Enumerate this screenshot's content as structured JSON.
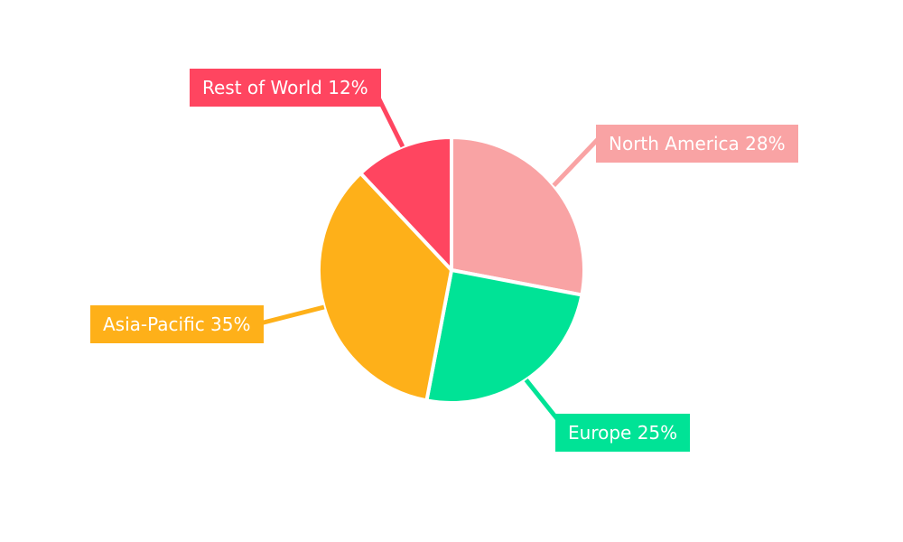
{
  "chart_data": {
    "type": "pie",
    "title": "",
    "categories": [
      "North America",
      "Europe",
      "Asia-Pacific",
      "Rest of World"
    ],
    "values": [
      28,
      25,
      35,
      12
    ],
    "unit": "%",
    "start_angle_deg": 0,
    "direction": "clockwise",
    "legend_position": "none (direct callout labels with leader lines)",
    "background_color": "#ffffff",
    "label_text_color": "#ffffff",
    "slice_gap_color": "#ffffff",
    "slices": [
      {
        "label": "North America",
        "value": 28,
        "display": "North America 28%",
        "color": "#f9a3a4"
      },
      {
        "label": "Europe",
        "value": 25,
        "display": "Europe 25%",
        "color": "#00e396"
      },
      {
        "label": "Asia-Pacific",
        "value": 35,
        "display": "Asia-Pacific 35%",
        "color": "#feb019"
      },
      {
        "label": "Rest of World",
        "value": 12,
        "display": "Rest of World 12%",
        "color": "#ff4560"
      }
    ]
  }
}
